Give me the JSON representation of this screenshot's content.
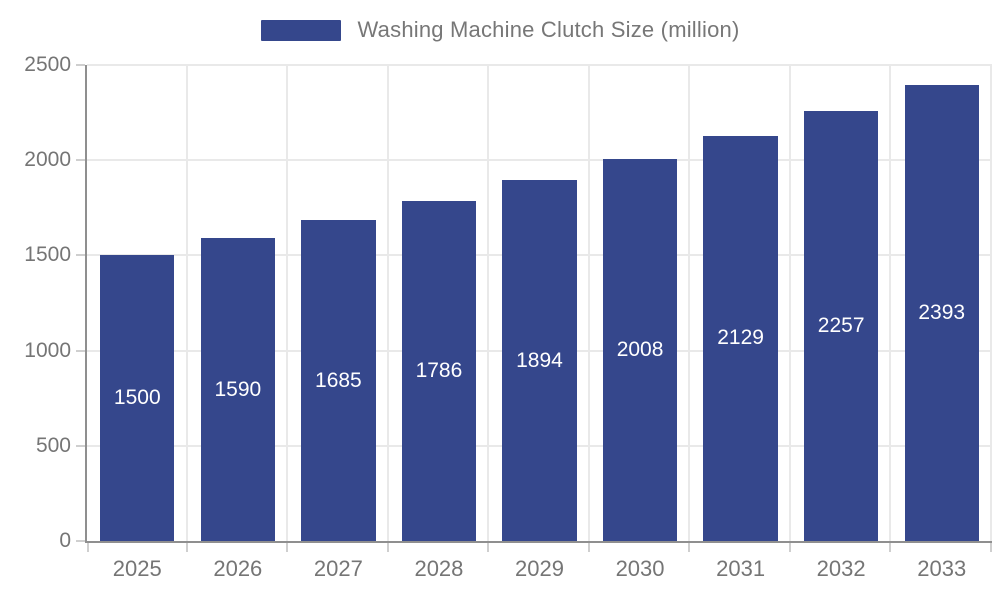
{
  "chart_data": {
    "type": "bar",
    "title": "Washing Machine Clutch Size (million)",
    "legend": {
      "label": "Washing Machine Clutch Size (million)",
      "swatch_color": "#35478c",
      "position": "top-center"
    },
    "categories": [
      "2025",
      "2026",
      "2027",
      "2028",
      "2029",
      "2030",
      "2031",
      "2032",
      "2033"
    ],
    "series": [
      {
        "name": "Washing Machine Clutch Size (million)",
        "values": [
          1500,
          1590,
          1685,
          1786,
          1894,
          2008,
          2129,
          2257,
          2393
        ]
      }
    ],
    "xlabel": "",
    "ylabel": "",
    "ylim": [
      0,
      2500
    ],
    "yticks": [
      0,
      500,
      1000,
      1500,
      2000,
      2500
    ],
    "grid": true,
    "bar_label_position": "inside-center",
    "colors": {
      "bar_fill": "#35478c",
      "bar_label": "#ffffff",
      "axis_line": "#8f8f8f",
      "tick_mark": "#cfcfcf",
      "grid_line": "#e9e9e9",
      "axis_text": "#757575",
      "legend_text": "#777777",
      "background": "#ffffff"
    }
  }
}
